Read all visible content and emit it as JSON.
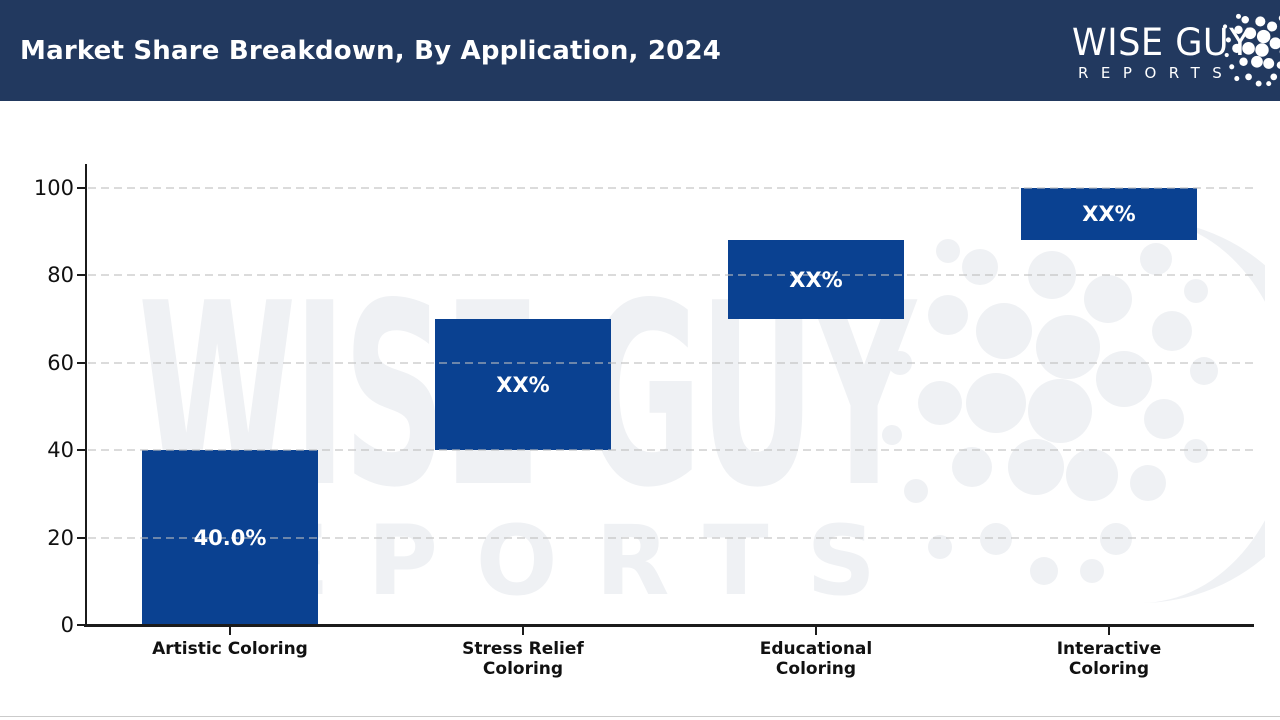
{
  "header": {
    "title": "Market Share Breakdown, By Application, 2024",
    "bg_color": "#22395f",
    "logo": {
      "wordmark": "WISE GUY",
      "subtext": "REPORTS"
    }
  },
  "watermark": {
    "wordmark": "WISE GUY",
    "subtext": "REPORTS"
  },
  "chart_data": {
    "type": "bar",
    "subtype": "waterfall",
    "title": "Market Share Breakdown, By Application, 2024",
    "xlabel": "",
    "ylabel": "",
    "categories": [
      "Artistic Coloring",
      "Stress Relief Coloring",
      "Educational Coloring",
      "Interactive Coloring"
    ],
    "category_label_lines": [
      [
        "Artistic Coloring"
      ],
      [
        "Stress Relief",
        "Coloring"
      ],
      [
        "Educational",
        "Coloring"
      ],
      [
        "Interactive",
        "Coloring"
      ]
    ],
    "series": [
      {
        "name": "Market Share (%)",
        "segments": [
          {
            "category": "Artistic Coloring",
            "start": 0,
            "end": 40,
            "value_label": "40.0%"
          },
          {
            "category": "Stress Relief Coloring",
            "start": 40,
            "end": 70,
            "value_label": "XX%"
          },
          {
            "category": "Educational Coloring",
            "start": 70,
            "end": 88,
            "value_label": "XX%"
          },
          {
            "category": "Interactive Coloring",
            "start": 88,
            "end": 100,
            "value_label": "XX%"
          }
        ]
      }
    ],
    "yticks": [
      0,
      20,
      40,
      60,
      80,
      100
    ],
    "ylim": [
      0,
      105
    ],
    "grid": "horizontal-dashed",
    "legend": "none",
    "bar_color": "#0a4191",
    "axis_color": "#1b1b1b",
    "grid_color": "#dcdcdc",
    "value_label_color": "#ffffff"
  }
}
